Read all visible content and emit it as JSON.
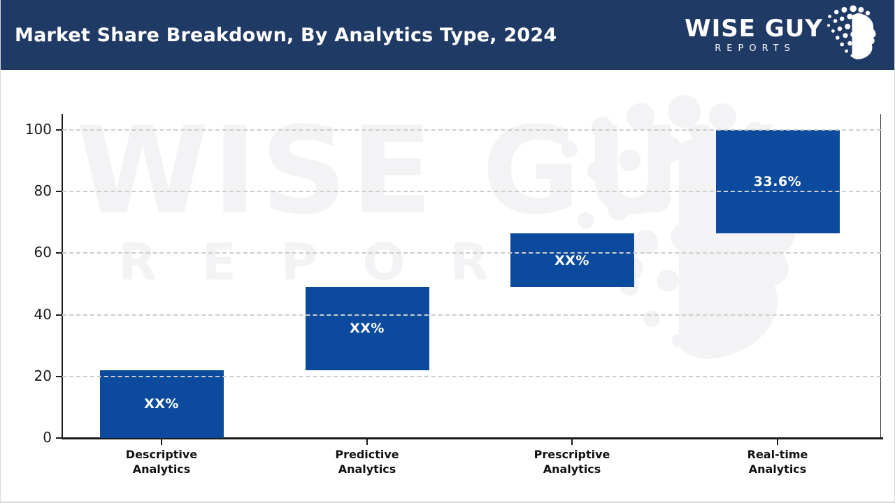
{
  "header": {
    "title": "Market Share Breakdown, By Analytics Type, 2024",
    "logo": {
      "line1": "WISE GUY",
      "line2": "REPORTS"
    }
  },
  "watermark": {
    "line1": "WISE GUY",
    "line2": "REPORTS"
  },
  "chart_data": {
    "type": "bar",
    "subtype": "floating-waterfall",
    "title": "Market Share Breakdown, By Analytics Type, 2024",
    "categories": [
      "Descriptive Analytics",
      "Predictive Analytics",
      "Prescriptive Analytics",
      "Real-time Analytics"
    ],
    "bars": [
      {
        "category": "Descriptive Analytics",
        "start": 0,
        "end": 22,
        "label": "XX%"
      },
      {
        "category": "Predictive Analytics",
        "start": 22,
        "end": 49,
        "label": "XX%"
      },
      {
        "category": "Prescriptive Analytics",
        "start": 49,
        "end": 66.4,
        "label": "XX%"
      },
      {
        "category": "Real-time Analytics",
        "start": 66.4,
        "end": 100,
        "label": "33.6%"
      }
    ],
    "xlabel": "",
    "ylabel": "",
    "ylim": [
      0,
      100
    ],
    "yticks": [
      0,
      20,
      40,
      60,
      80,
      100
    ],
    "grid": "horizontal-dashed",
    "legend": "none",
    "colors": {
      "bar": "#0b4a9c",
      "bar_label": "#ffffff",
      "header_bg": "#203a66",
      "grid": "#cdcdcd",
      "axis": "#1a1a1a",
      "watermark": "#f3f3f5"
    }
  }
}
